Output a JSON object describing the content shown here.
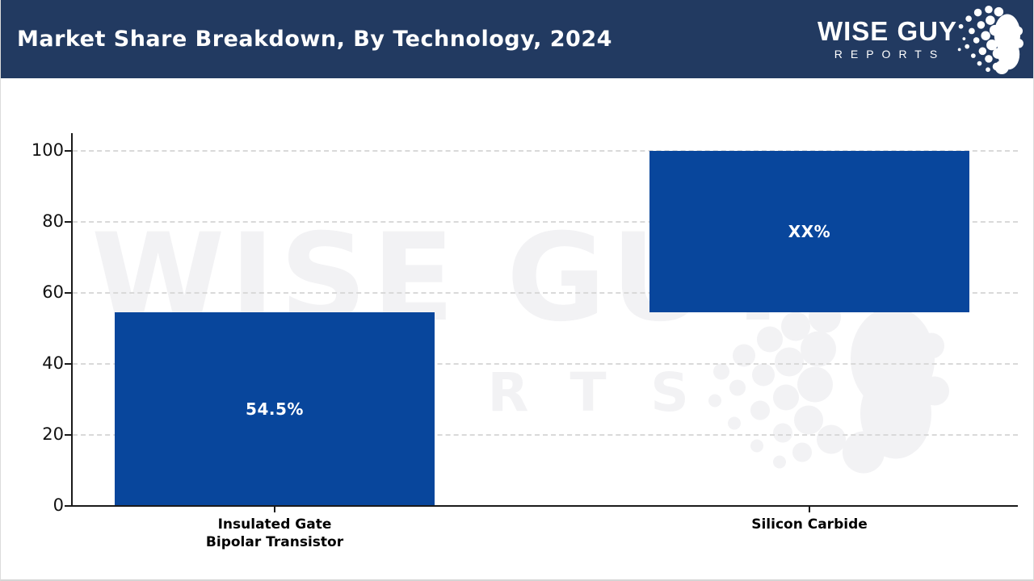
{
  "header": {
    "title": "Market Share Breakdown, By Technology, 2024",
    "logo": {
      "name": "WISE GUY",
      "sub": "REPORTS"
    }
  },
  "chart_data": {
    "type": "bar",
    "subtype": "floating-segment (waterfall-style market share breakdown)",
    "title": "Market Share Breakdown, By Technology, 2024",
    "categories": [
      "Insulated Gate\nBipolar Transistor",
      "Silicon Carbide"
    ],
    "bars": [
      {
        "category": "Insulated Gate Bipolar Transistor",
        "start": 0,
        "end": 54.5,
        "label": "54.5%"
      },
      {
        "category": "Silicon Carbide",
        "start": 54.5,
        "end": 100,
        "label": "XX%"
      }
    ],
    "ylim": [
      0,
      100
    ],
    "yticks": [
      0,
      20,
      40,
      60,
      80,
      100
    ],
    "grid": "dashed horizontal gridlines",
    "legend": "none",
    "bar_color": "#08469c"
  },
  "watermark": {
    "line1": "WISE GUY",
    "letters": [
      "R",
      "T",
      "S"
    ]
  },
  "colors": {
    "header_bg": "#223a61",
    "bar": "#08469c",
    "gridline": "#d9d9d9",
    "axis": "#1a1a1a",
    "watermark": "#f2f2f4",
    "title_text": "#ffffff"
  }
}
